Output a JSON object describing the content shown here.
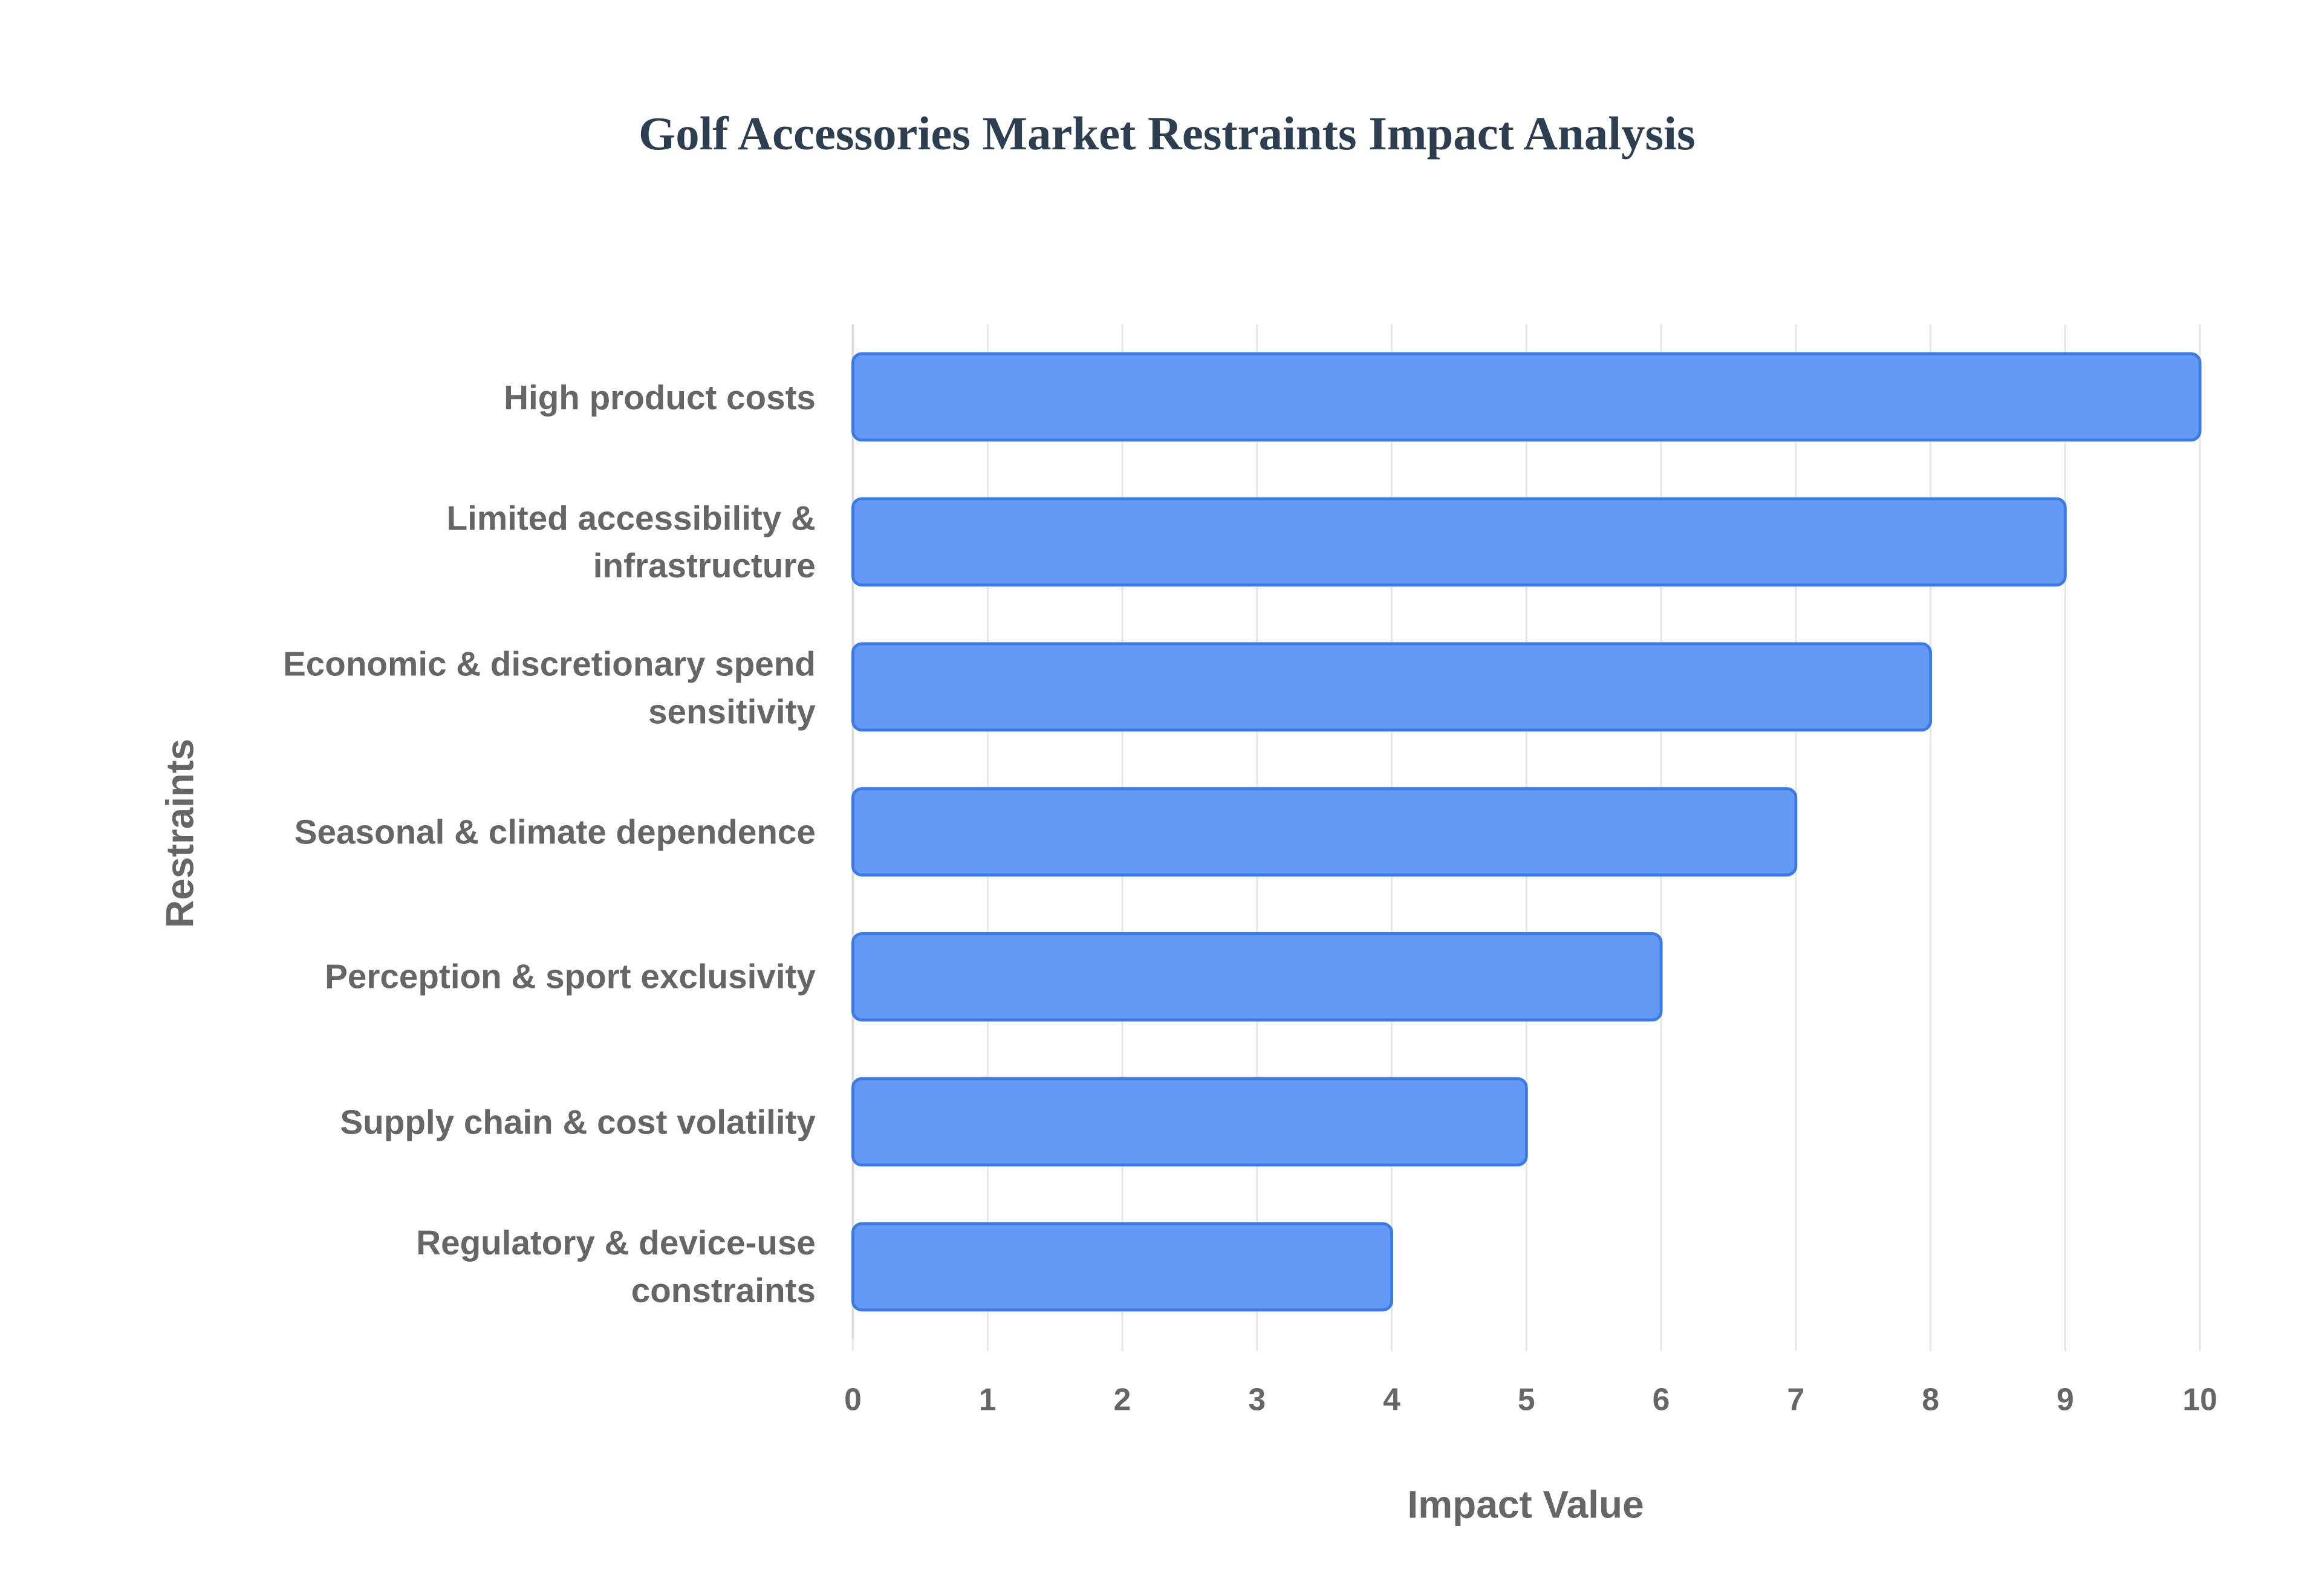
{
  "chart_data": {
    "type": "bar",
    "orientation": "horizontal",
    "title": "Golf Accessories Market Restraints Impact Analysis",
    "x_label": "Impact Value",
    "y_label": "Restraints",
    "categories": [
      "High product costs",
      "Limited accessibility & infrastructure",
      "Economic & discretionary spend sensitivity",
      "Seasonal & climate dependence",
      "Perception & sport exclusivity",
      "Supply chain & cost volatility",
      "Regulatory & device-use constraints"
    ],
    "values": [
      10,
      9,
      8,
      7,
      6,
      5,
      4
    ],
    "color": "#6499f5",
    "xlim": [
      0,
      10
    ],
    "xticks": [
      0,
      1,
      2,
      3,
      4,
      5,
      6,
      7,
      8,
      9,
      10
    ],
    "grid": true
  }
}
